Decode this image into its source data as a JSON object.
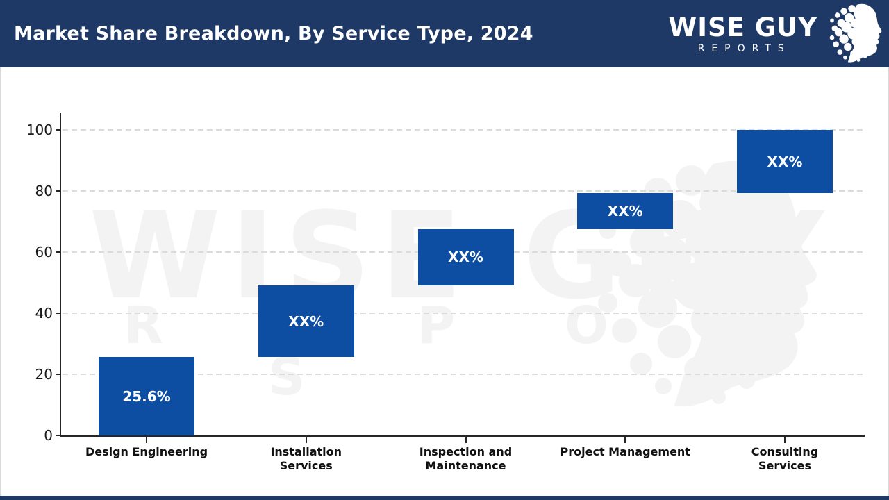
{
  "header": {
    "title": "Market Share Breakdown, By Service Type, 2024",
    "bg_color": "#1F3966",
    "logo": {
      "wordmark": "WISE GUY",
      "sub": "REPORTS"
    }
  },
  "watermark": {
    "line1": "WISE GUY",
    "line2": "R E P O R T S"
  },
  "chart_data": {
    "type": "bar",
    "subtype": "waterfall-floating-bars",
    "title": "Market Share Breakdown, By Service Type, 2024",
    "xlabel": "",
    "ylabel": "",
    "ylim": [
      0,
      100
    ],
    "yticks": [
      0,
      20,
      40,
      60,
      80,
      100
    ],
    "grid": "horizontal-dashed",
    "legend": "none",
    "bar_color": "#0D4DA2",
    "bar_label_color": "#FFFFFF",
    "categories": [
      {
        "label": "Design Engineering",
        "lines": [
          "Design Engineering"
        ]
      },
      {
        "label": "Installation Services",
        "lines": [
          "Installation",
          "Services"
        ]
      },
      {
        "label": "Inspection and Maintenance",
        "lines": [
          "Inspection and",
          "Maintenance"
        ]
      },
      {
        "label": "Project Management",
        "lines": [
          "Project Management"
        ]
      },
      {
        "label": "Consulting Services",
        "lines": [
          "Consulting",
          "Services"
        ]
      }
    ],
    "segments": [
      {
        "category": "Design Engineering",
        "start": 0,
        "end": 25.6,
        "value": 25.6,
        "display_label": "25.6%"
      },
      {
        "category": "Installation Services",
        "start": 25.6,
        "end": 49.1,
        "value": 23.5,
        "display_label": "XX%"
      },
      {
        "category": "Inspection and Maintenance",
        "start": 49.1,
        "end": 67.5,
        "value": 18.4,
        "display_label": "XX%"
      },
      {
        "category": "Project Management",
        "start": 67.5,
        "end": 79.3,
        "value": 11.8,
        "display_label": "XX%"
      },
      {
        "category": "Consulting Services",
        "start": 79.3,
        "end": 100,
        "value": 20.7,
        "display_label": "XX%"
      }
    ]
  }
}
